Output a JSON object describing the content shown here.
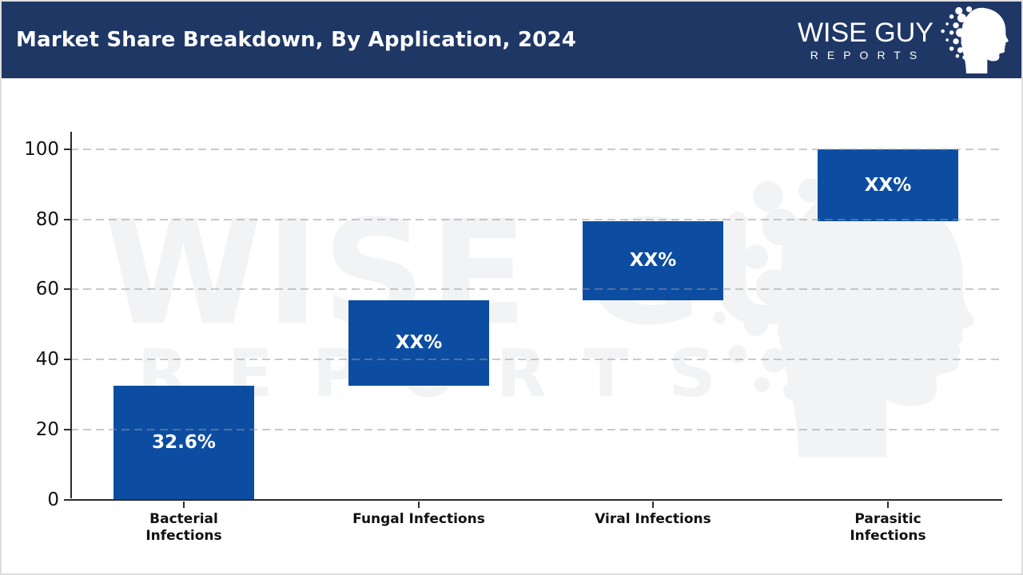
{
  "header": {
    "title": "Market Share Breakdown, By Application, 2024",
    "logo": {
      "wordmark": "WISE GUY",
      "subtitle": "REPORTS"
    }
  },
  "watermark": {
    "wordmark": "WISE GUY",
    "subtitle": "REPORTS"
  },
  "chart_data": {
    "type": "bar",
    "subtype": "waterfall",
    "title": "Market Share Breakdown, By Application, 2024",
    "categories": [
      "Bacterial Infections",
      "Fungal Infections",
      "Viral Infections",
      "Parasitic Infections"
    ],
    "tick_labels": [
      "Bacterial\nInfections",
      "Fungal Infections",
      "Viral Infections",
      "Parasitic\nInfections"
    ],
    "segments": [
      {
        "category": "Bacterial Infections",
        "start": 0,
        "end": 32.6,
        "label": "32.6%"
      },
      {
        "category": "Fungal Infections",
        "start": 32.6,
        "end": 57,
        "label": "XX%"
      },
      {
        "category": "Viral Infections",
        "start": 57,
        "end": 79.5,
        "label": "XX%"
      },
      {
        "category": "Parasitic Infections",
        "start": 79.5,
        "end": 100,
        "label": "XX%"
      }
    ],
    "ylim": [
      0,
      100
    ],
    "yticks": [
      0,
      20,
      40,
      60,
      80,
      100
    ],
    "grid": true,
    "grid_style": "dashed",
    "legend": false,
    "bar_color": "#0C4DA2",
    "bar_label_color": "#FFFFFF",
    "header_color": "#1F3765",
    "axis_color": "#2B2B2B",
    "watermark_color": "#F2F3F5"
  }
}
